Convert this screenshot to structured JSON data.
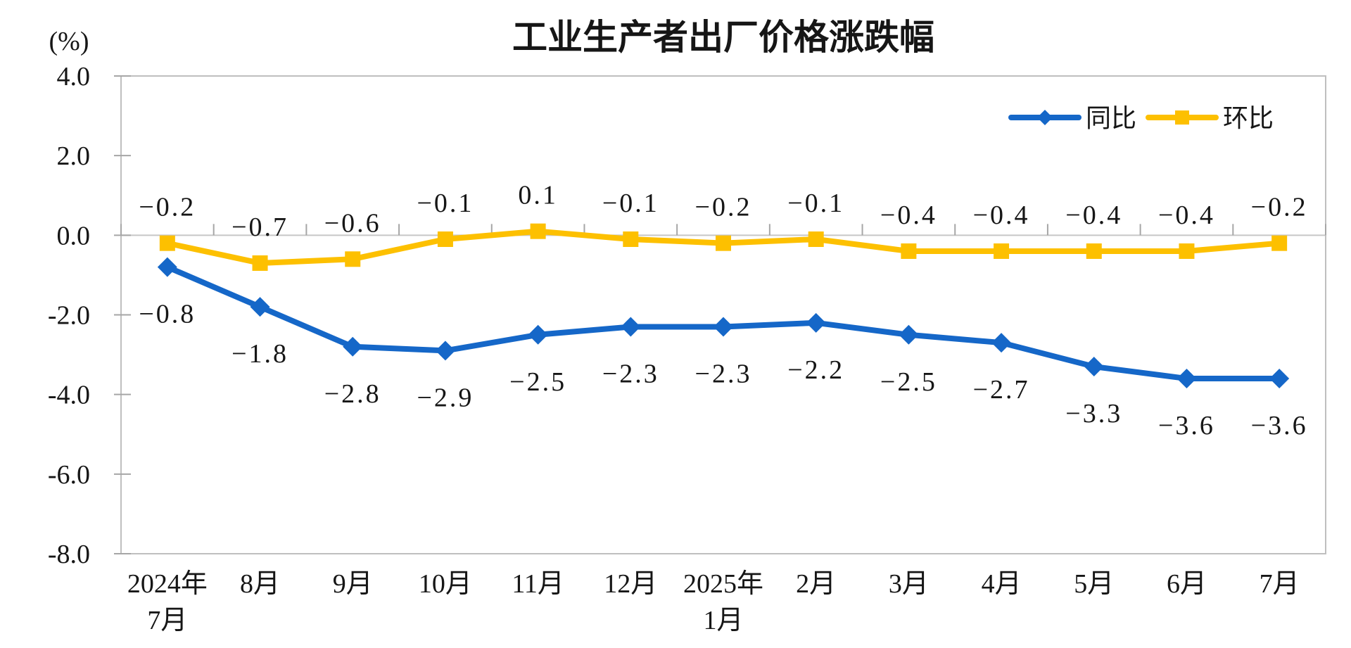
{
  "chart_data": {
    "type": "line",
    "title": "工业生产者出厂价格涨跌幅",
    "unit_label": "(%)",
    "categories": [
      [
        "2024年",
        "7月"
      ],
      [
        "8月"
      ],
      [
        "9月"
      ],
      [
        "10月"
      ],
      [
        "11月"
      ],
      [
        "12月"
      ],
      [
        "2025年",
        "1月"
      ],
      [
        "2月"
      ],
      [
        "3月"
      ],
      [
        "4月"
      ],
      [
        "5月"
      ],
      [
        "6月"
      ],
      [
        "7月"
      ]
    ],
    "series": [
      {
        "name": "同比",
        "color": "#1567C8",
        "marker": "diamond",
        "label_position": "below",
        "values": [
          -0.8,
          -1.8,
          -2.8,
          -2.9,
          -2.5,
          -2.3,
          -2.3,
          -2.2,
          -2.5,
          -2.7,
          -3.3,
          -3.6,
          -3.6
        ]
      },
      {
        "name": "环比",
        "color": "#FDC000",
        "marker": "square",
        "label_position": "above",
        "values": [
          -0.2,
          -0.7,
          -0.6,
          -0.1,
          0.1,
          -0.1,
          -0.2,
          -0.1,
          -0.4,
          -0.4,
          -0.4,
          -0.4,
          -0.2
        ]
      }
    ],
    "ylim": [
      -8.0,
      4.0
    ],
    "ytick_interval": 2.0,
    "ytick_labels": [
      "4.0",
      "2.0",
      "0.0",
      "-2.0",
      "-4.0",
      "-6.0",
      "-8.0"
    ],
    "grid": false,
    "legend_position": "top-right-inside",
    "axis_color": "#BFBFBF",
    "zero_line_color": "#C6C6C6",
    "tick_color": "#A6A6A6"
  }
}
